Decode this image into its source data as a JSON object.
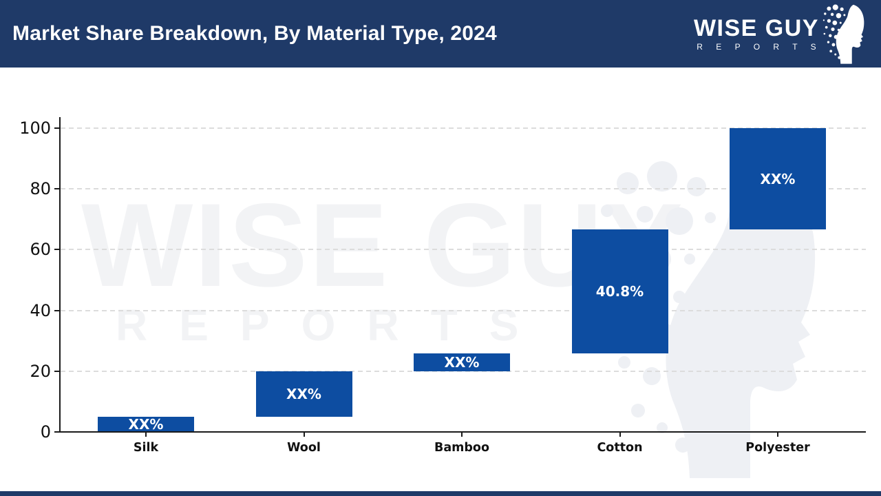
{
  "header": {
    "title": "Market Share Breakdown, By Material Type, 2024",
    "logo": {
      "line1": "WISE GUY",
      "line2": "REPORTS",
      "face_icon": "dot-face-profile-icon"
    }
  },
  "watermark": {
    "line1": "WISE GUY",
    "line2": "REPORTS",
    "face_icon": "dot-face-profile-watermark"
  },
  "colors": {
    "header_bg": "#1f3a68",
    "footer_bg": "#1f3a68",
    "bar": "#0d4da1",
    "bar_label": "#ffffff",
    "axis": "#1a1a1a",
    "gridline": "#dcdcdc",
    "watermark": "#f2f3f5",
    "title_text": "#ffffff"
  },
  "chart_data": {
    "type": "bar",
    "subtype": "waterfall",
    "title": "Market Share Breakdown, By Material Type, 2024",
    "xlabel": "",
    "ylabel": "",
    "categories": [
      "Silk",
      "Wool",
      "Bamboo",
      "Cotton",
      "Polyester"
    ],
    "bars": [
      {
        "category": "Silk",
        "start": 0,
        "end": 5,
        "label": "XX%"
      },
      {
        "category": "Wool",
        "start": 5,
        "end": 20,
        "label": "XX%"
      },
      {
        "category": "Bamboo",
        "start": 20,
        "end": 25.8,
        "label": "XX%"
      },
      {
        "category": "Cotton",
        "start": 25.8,
        "end": 66.6,
        "label": "40.8%",
        "value": 40.8
      },
      {
        "category": "Polyester",
        "start": 66.6,
        "end": 100,
        "label": "XX%"
      }
    ],
    "yticks": [
      0,
      20,
      40,
      60,
      80,
      100
    ],
    "ylim": [
      0,
      103.5
    ],
    "grid": "horizontal dashed",
    "legend": "none"
  }
}
